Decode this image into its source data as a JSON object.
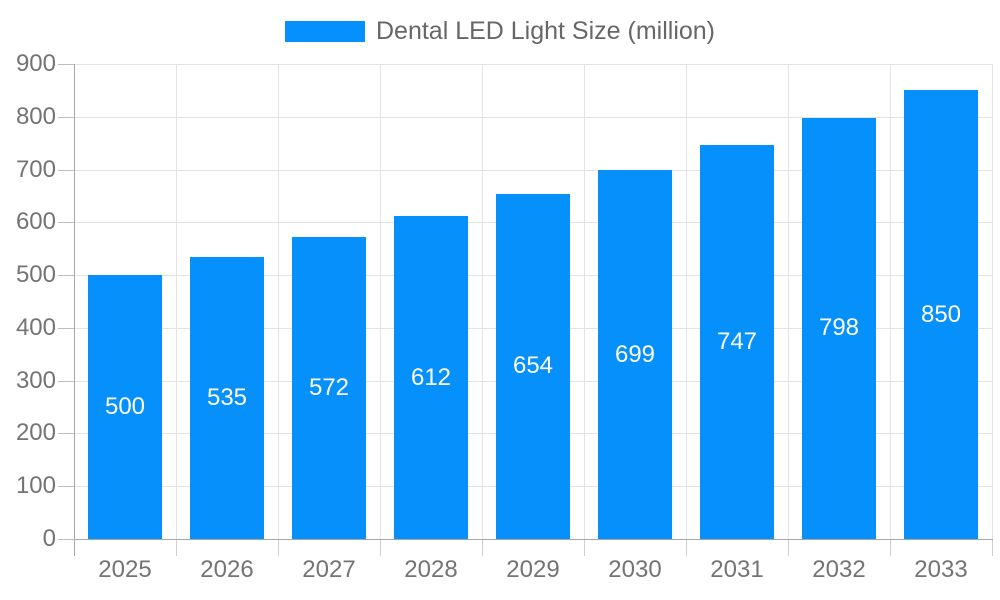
{
  "legend": {
    "label": "Dental LED Light Size (million)"
  },
  "chart_data": {
    "type": "bar",
    "title": "Dental LED Light Size (million)",
    "series_name": "Dental LED Light Size (million)",
    "categories": [
      "2025",
      "2026",
      "2027",
      "2028",
      "2029",
      "2030",
      "2031",
      "2032",
      "2033"
    ],
    "values": [
      500,
      535,
      572,
      612,
      654,
      699,
      747,
      798,
      850
    ],
    "xlabel": "",
    "ylabel": "",
    "ylim": [
      0,
      900
    ],
    "y_ticks": [
      0,
      100,
      200,
      300,
      400,
      500,
      600,
      700,
      800,
      900
    ],
    "grid": true,
    "legend_position": "top-center",
    "bar_color": "#0590fb",
    "value_label_color": "#ffffff",
    "axis_text_color": "#747474"
  }
}
